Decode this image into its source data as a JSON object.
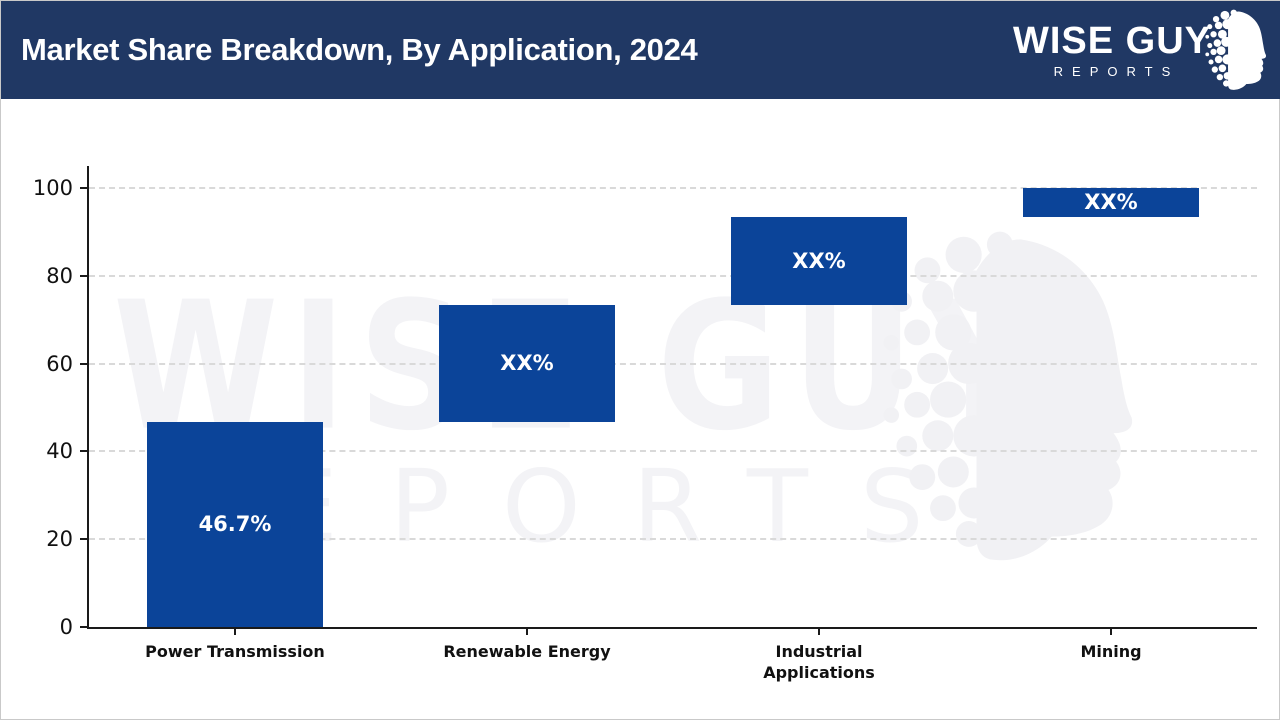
{
  "header": {
    "title": "Market Share Breakdown, By Application, 2024",
    "bg_color": "#203864",
    "logo_line1": "WISE GUY",
    "logo_line2": "REPORTS"
  },
  "watermark": {
    "line1": "WISE GUY",
    "line2": "REPORTS"
  },
  "chart_data": {
    "type": "bar",
    "variant": "waterfall",
    "title": "Market Share Breakdown, By Application, 2024",
    "categories": [
      "Power Transmission",
      "Renewable Energy",
      "Industrial\nApplications",
      "Mining"
    ],
    "segments": [
      {
        "label": "Power Transmission",
        "start": 0,
        "end": 46.7,
        "value_label": "46.7%"
      },
      {
        "label": "Renewable Energy",
        "start": 46.7,
        "end": 73.3,
        "value_label": "XX%"
      },
      {
        "label": "Industrial Applications",
        "start": 73.3,
        "end": 93.3,
        "value_label": "XX%"
      },
      {
        "label": "Mining",
        "start": 93.3,
        "end": 100,
        "value_label": "XX%"
      }
    ],
    "yticks": [
      0,
      20,
      40,
      60,
      80,
      100
    ],
    "ylim": [
      0,
      105
    ],
    "xlabel": "",
    "ylabel": "",
    "legend": "none",
    "grid": {
      "axis": "y",
      "style": "dashed",
      "color": "#d9d9d9"
    },
    "bar_color": "#0b4499",
    "bar_label_color": "#ffffff",
    "axis_color": "#1a1a1a"
  }
}
